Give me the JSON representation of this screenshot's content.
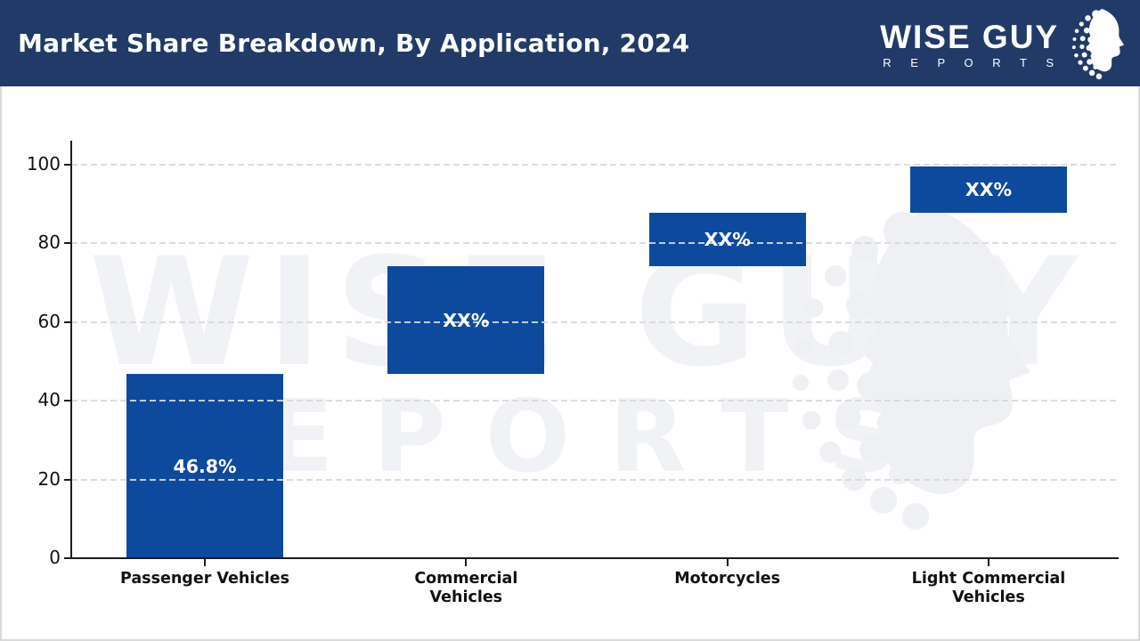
{
  "page": {
    "background": "#ffffff",
    "header_bg": "#213a67",
    "border_color": "#d9d9d9"
  },
  "header": {
    "title": "Market Share Breakdown, By Application, 2024",
    "logo": {
      "name_line1": "WISE GUY",
      "name_line2": "R E P O R T S"
    }
  },
  "watermark": {
    "line1_left": "WISE GU",
    "line1_right": "Y",
    "line2": "REPORTS"
  },
  "chart_data": {
    "type": "bar",
    "variant": "waterfall",
    "title": "Market Share Breakdown, By Application, 2024",
    "categories": [
      "Passenger Vehicles",
      "Commercial\nVehicles",
      "Motorcycles",
      "Light Commercial\nVehicles"
    ],
    "segments": [
      {
        "category": "Passenger Vehicles",
        "start": 0,
        "end": 46.8,
        "label": "46.8%"
      },
      {
        "category": "Commercial Vehicles",
        "start": 46.8,
        "end": 74.2,
        "label": "XX%"
      },
      {
        "category": "Motorcycles",
        "start": 74.2,
        "end": 87.8,
        "label": "XX%"
      },
      {
        "category": "Light Commercial Vehicles",
        "start": 87.8,
        "end": 99.5,
        "label": "XX%"
      }
    ],
    "yticks": [
      0,
      20,
      40,
      60,
      80,
      100
    ],
    "ylim": [
      0,
      106
    ],
    "xlabel": "",
    "ylabel": "",
    "legend": "none",
    "grid": {
      "visible": true,
      "orientation": "horizontal",
      "style": "dashed",
      "color": "#d9d9d9"
    },
    "bar_color": "#0d4a9e",
    "bar_label_color": "#ffffff",
    "axis_color": "#1c1c1c",
    "tick_label_color": "#111111"
  }
}
